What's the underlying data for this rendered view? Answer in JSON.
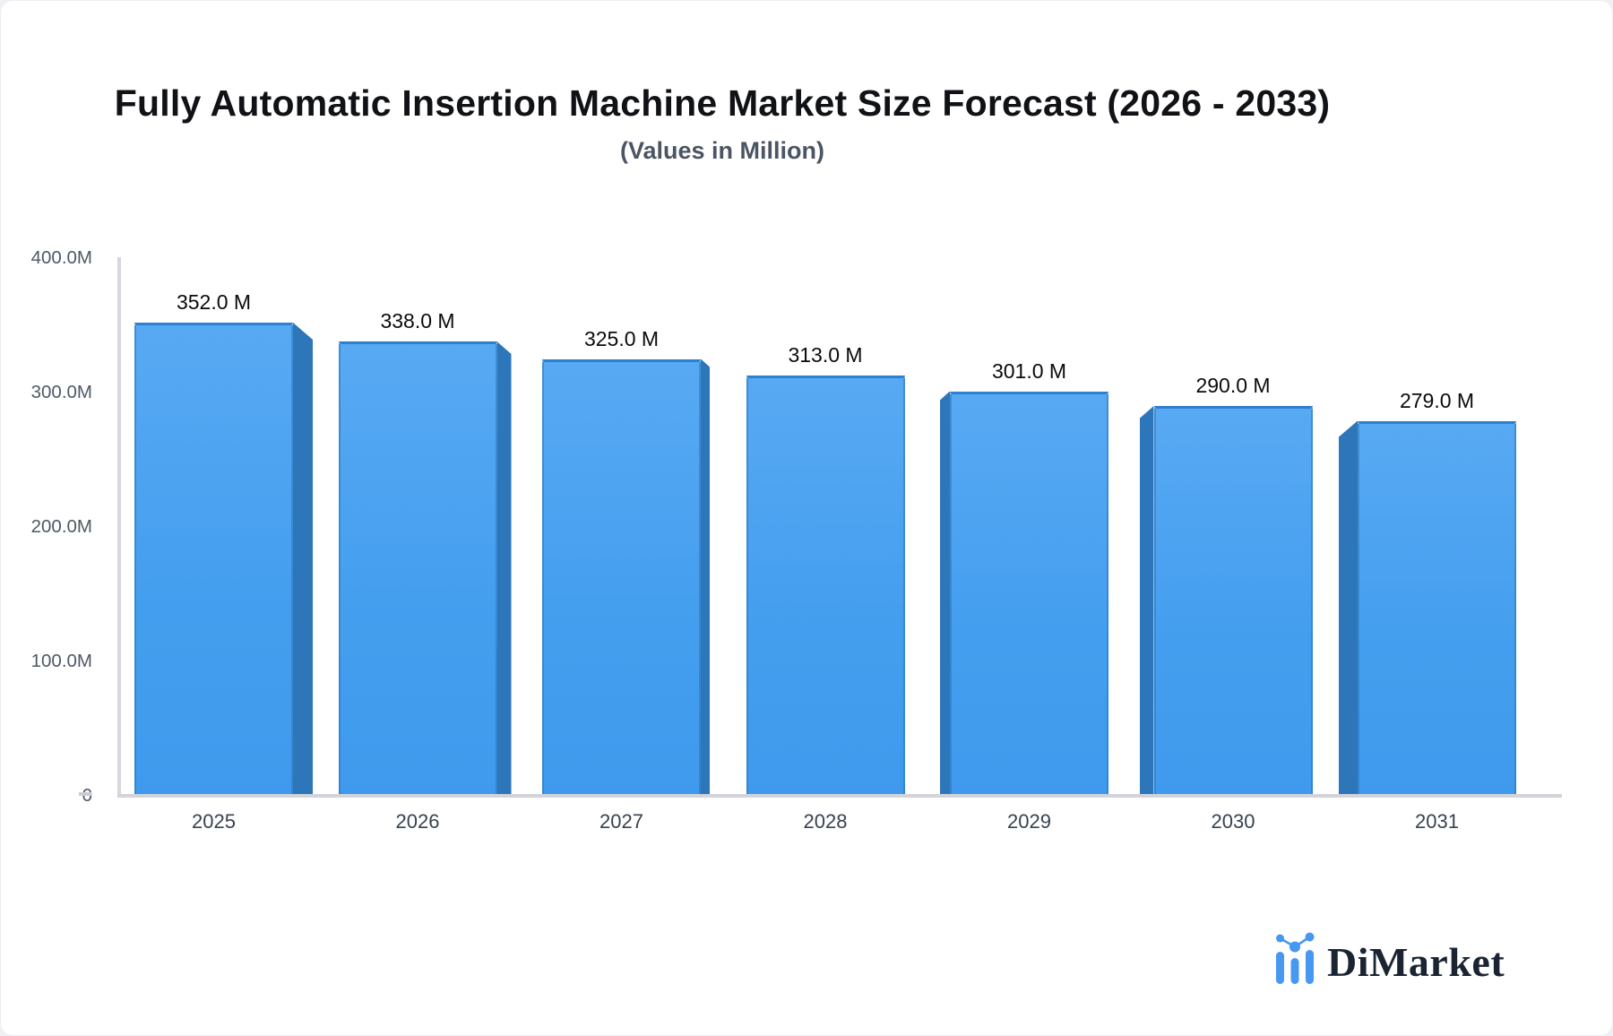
{
  "header": {
    "title": "Fully Automatic Insertion Machine Market Size Forecast (2026 - 2033)",
    "subtitle": "(Values in Million)"
  },
  "chart_data": {
    "type": "bar",
    "categories": [
      "2025",
      "2026",
      "2027",
      "2028",
      "2029",
      "2030",
      "2031"
    ],
    "values": [
      352,
      338,
      325,
      313,
      301,
      290,
      279
    ],
    "value_labels": [
      "352.0 M",
      "338.0 M",
      "325.0 M",
      "313.0 M",
      "301.0 M",
      "290.0 M",
      "279.0 M"
    ],
    "title": "Fully Automatic Insertion Machine Market Size Forecast (2026 - 2033)",
    "subtitle": "(Values in Million)",
    "xlabel": "",
    "ylabel": "",
    "ylim": [
      0,
      400
    ],
    "ytick_labels": [
      "400.0M",
      "300.0M",
      "200.0M",
      "100.0M",
      "0"
    ],
    "ytick_values": [
      400,
      300,
      200,
      100,
      0
    ],
    "grid": false,
    "legend": false,
    "style": "pseudo-3d bars, perspective toward center bar",
    "colors": {
      "bar_face_top": "#58a9f3",
      "bar_face_bottom": "#3f9aed",
      "bar_side": "#2c76b9",
      "bar_top_edge": "#2d7fd0",
      "axis": "#d4d6db",
      "value_label": "#0b0b0c",
      "tick_label": "#4e5968"
    }
  },
  "logo": {
    "text": "DiMarket",
    "icon": "bar-chart-logo-icon",
    "icon_color": "#4698f0",
    "text_color": "#1a2433"
  }
}
